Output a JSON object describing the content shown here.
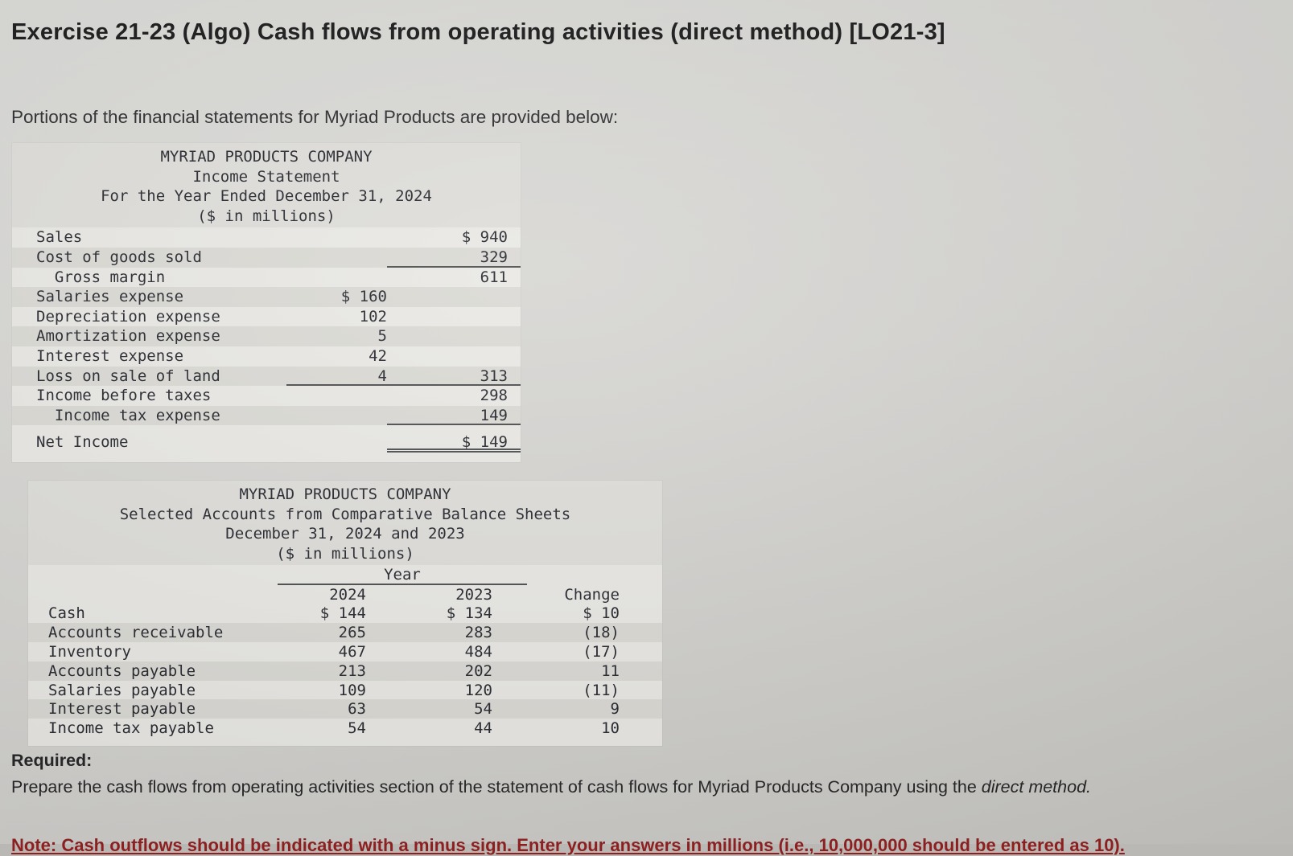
{
  "page": {
    "title": "Exercise 21-23 (Algo) Cash flows from operating activities (direct method) [LO21-3]",
    "intro": "Portions of the financial statements for Myriad Products are provided below:",
    "required_label": "Required:",
    "required_text": "Prepare the cash flows from operating activities section of the statement of cash flows for Myriad Products Company using the ",
    "required_emphasis": "direct method.",
    "clipped_note": "Note: Cash outflows should be indicated with a minus sign. Enter your answers in millions (i.e., 10,000,000 should be entered as 10)."
  },
  "income_statement": {
    "header": {
      "line1": "MYRIAD PRODUCTS COMPANY",
      "line2": "Income Statement",
      "line3": "For the Year Ended December 31, 2024",
      "line4": "($ in millions)"
    },
    "rows": [
      {
        "label": "Sales",
        "c1": "",
        "c2": "$ 940"
      },
      {
        "label": "Cost of goods sold",
        "c1": "",
        "c2": "329"
      },
      {
        "label": "  Gross margin",
        "c1": "",
        "c2": "611"
      },
      {
        "label": "Salaries expense",
        "c1": "$ 160",
        "c2": ""
      },
      {
        "label": "Depreciation expense",
        "c1": "102",
        "c2": ""
      },
      {
        "label": "Amortization expense",
        "c1": "5",
        "c2": ""
      },
      {
        "label": "Interest expense",
        "c1": "42",
        "c2": ""
      },
      {
        "label": "Loss on sale of land",
        "c1": "4",
        "c2": "313"
      },
      {
        "label": "Income before taxes",
        "c1": "",
        "c2": "298"
      },
      {
        "label": "  Income tax expense",
        "c1": "",
        "c2": "149"
      },
      {
        "label": "Net Income",
        "c1": "",
        "c2": "$ 149"
      }
    ]
  },
  "balance_sheet": {
    "header": {
      "line1": "MYRIAD PRODUCTS COMPANY",
      "line2": "Selected Accounts from Comparative Balance Sheets",
      "line3": "December 31, 2024 and 2023",
      "line4": "($ in millions)"
    },
    "year_label": "Year",
    "columns": {
      "y2024": "2024",
      "y2023": "2023",
      "change": "Change"
    },
    "rows": [
      {
        "label": "Cash",
        "c1": "$ 144",
        "c2": "$ 134",
        "c3": "$ 10"
      },
      {
        "label": "Accounts receivable",
        "c1": "265",
        "c2": "283",
        "c3": "(18)"
      },
      {
        "label": "Inventory",
        "c1": "467",
        "c2": "484",
        "c3": "(17)"
      },
      {
        "label": "Accounts payable",
        "c1": "213",
        "c2": "202",
        "c3": "11"
      },
      {
        "label": "Salaries payable",
        "c1": "109",
        "c2": "120",
        "c3": "(11)"
      },
      {
        "label": "Interest payable",
        "c1": "63",
        "c2": "54",
        "c3": "9"
      },
      {
        "label": "Income tax payable",
        "c1": "54",
        "c2": "44",
        "c3": "10"
      }
    ]
  }
}
